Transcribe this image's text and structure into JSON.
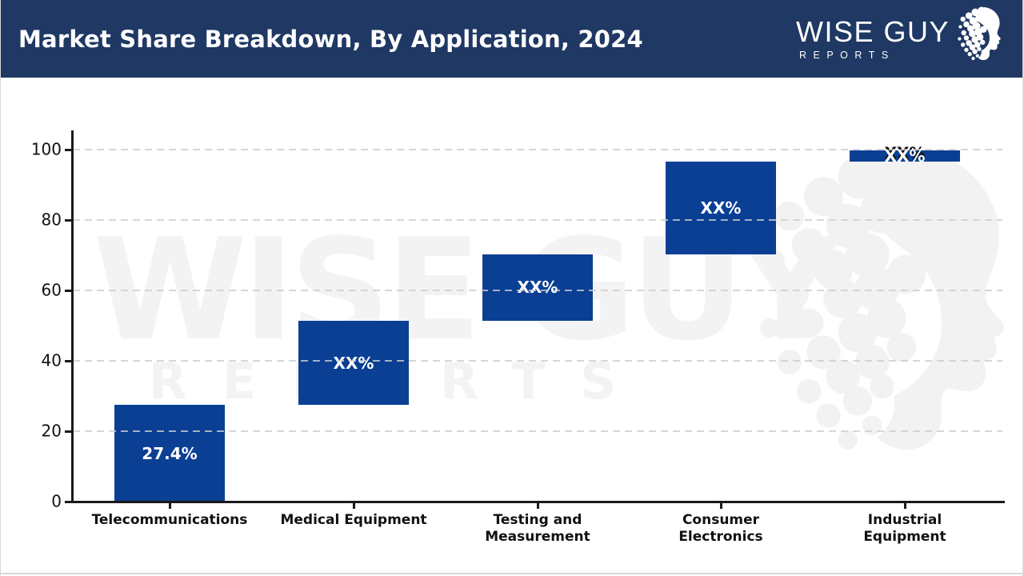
{
  "header": {
    "title": "Market Share Breakdown, By Application, 2024",
    "logo": {
      "line1": "WISE GUY",
      "line2": "REPORTS"
    }
  },
  "watermark": {
    "line1": "WISE GUY",
    "line2": "REPORTS"
  },
  "chart_data": {
    "type": "bar",
    "variant": "waterfall",
    "title": "Market Share Breakdown, By Application, 2024",
    "categories": [
      [
        "Telecommunications"
      ],
      [
        "Medical Equipment"
      ],
      [
        "Testing and",
        "Measurement"
      ],
      [
        "Consumer",
        "Electronics"
      ],
      [
        "Industrial",
        "Equipment"
      ]
    ],
    "bars": [
      {
        "category": "Telecommunications",
        "start": 0,
        "end": 27.4,
        "label": "27.4%"
      },
      {
        "category": "Medical Equipment",
        "start": 27.4,
        "end": 51.4,
        "label": "XX%"
      },
      {
        "category": "Testing and Measurement",
        "start": 51.4,
        "end": 70.2,
        "label": "XX%"
      },
      {
        "category": "Consumer Electronics",
        "start": 70.2,
        "end": 96.6,
        "label": "XX%"
      },
      {
        "category": "Industrial Equipment",
        "start": 96.6,
        "end": 99.7,
        "label": "XX%"
      }
    ],
    "yticks": [
      0,
      20,
      40,
      60,
      80,
      100
    ],
    "ylim": [
      0,
      105.5
    ],
    "xlabel": "",
    "ylabel": "",
    "grid": "horizontal-dashed",
    "legend": null,
    "bar_color": "#0a3f94",
    "bar_label_color": "#ffffff"
  },
  "colors": {
    "header_bg": "#1f3864",
    "bar": "#0a3f94",
    "gridline": "#dcdcdc",
    "axis": "#1a1a1a",
    "watermark": "#f3f3f3",
    "page_border": "#d9d9d9"
  }
}
